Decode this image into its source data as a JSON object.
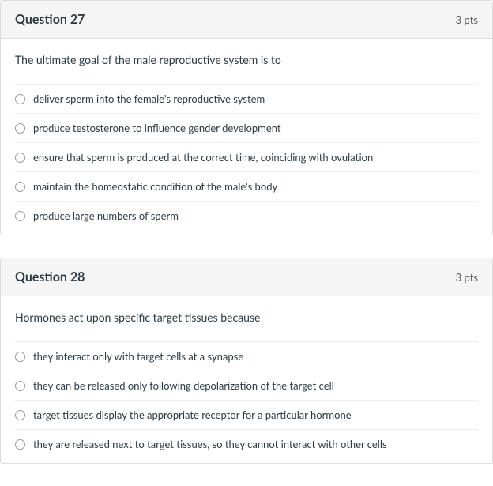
{
  "questions": [
    {
      "title": "Question 27",
      "points": "3 pts",
      "prompt": "The ultimate goal of the male reproductive system is to",
      "options": [
        "deliver sperm into the female's reproductive system",
        "produce testosterone to influence gender development",
        "ensure that sperm is produced at the correct time, coinciding with ovulation",
        "maintain the homeostatic condition of the male's body",
        "produce large numbers of sperm"
      ]
    },
    {
      "title": "Question 28",
      "points": "3 pts",
      "prompt": "Hormones act upon specific target tissues because",
      "options": [
        "they interact only with target cells at a synapse",
        "they can be released only following depolarization of the target cell",
        "target tissues display the appropriate receptor for a particular hormone",
        "they are released next to target tissues, so they cannot interact with other cells"
      ]
    }
  ],
  "colors": {
    "header_bg": "#f5f5f5",
    "border": "#dddddd",
    "text": "#2d3b45",
    "option_border": "#eeeeee",
    "radio_border": "#999999",
    "points_text": "#595959"
  }
}
